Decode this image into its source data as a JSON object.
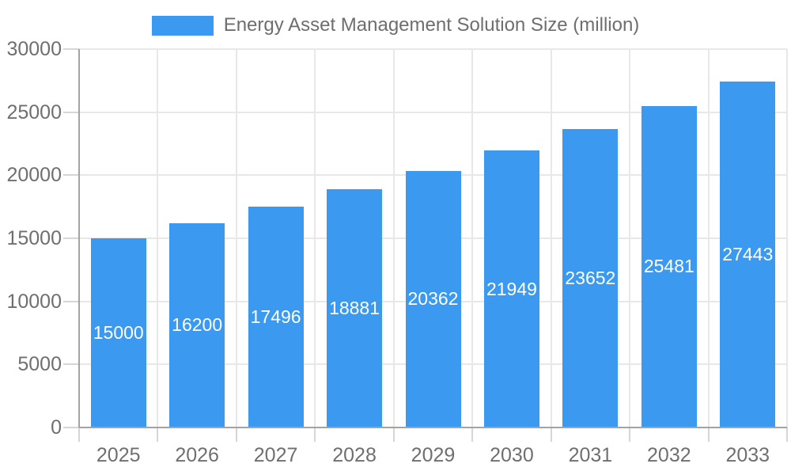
{
  "legend": {
    "label": "Energy Asset Management Solution Size (million)"
  },
  "chart_data": {
    "type": "bar",
    "title": "Energy Asset Management Solution Size (million)",
    "series_name": "Energy Asset Management Solution Size (million)",
    "categories": [
      "2025",
      "2026",
      "2027",
      "2028",
      "2029",
      "2030",
      "2031",
      "2032",
      "2033"
    ],
    "values": [
      15000,
      16200,
      17496,
      18881,
      20362,
      21949,
      23652,
      25481,
      27443
    ],
    "value_labels": [
      "15000",
      "16200",
      "17496",
      "18881",
      "20362",
      "21949",
      "23652",
      "25481",
      "27443"
    ],
    "xlabel": "",
    "ylabel": "",
    "ylim": [
      0,
      30000
    ],
    "yticks": [
      0,
      5000,
      10000,
      15000,
      20000,
      25000,
      30000
    ],
    "ytick_labels": [
      "0",
      "5000",
      "10000",
      "15000",
      "20000",
      "25000",
      "30000"
    ],
    "grid": true,
    "legend_position": "top",
    "bar_color": "#3B99F0",
    "value_label_color": "#FFFFFF",
    "axis_text_color": "#6F6F6F",
    "gridline_color": "#E8E8E8",
    "axis_line_color": "#A3A3A3",
    "background_color": "#FFFFFF"
  }
}
